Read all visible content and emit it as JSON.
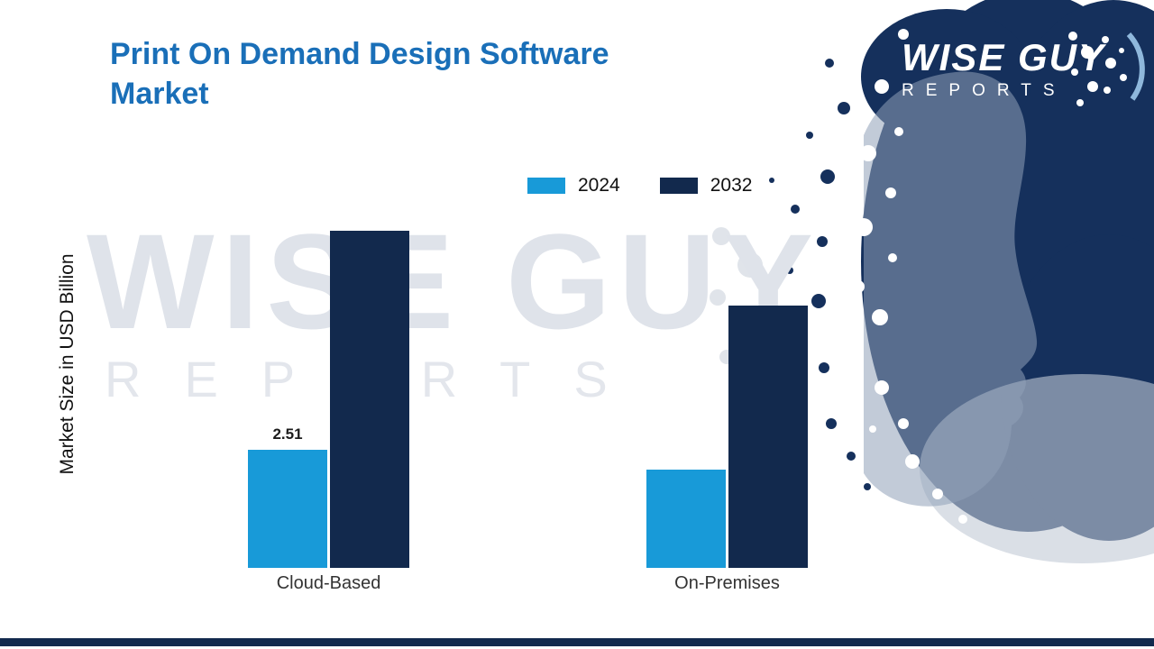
{
  "title": {
    "line1": "Print On Demand Design Software",
    "line2": "Market"
  },
  "logo": {
    "name": "WISE GUY",
    "sub": "REPORTS"
  },
  "watermark": {
    "line1": "WISE GUY",
    "line2": "REPORTS"
  },
  "chart_data": {
    "type": "bar",
    "title": "Print On Demand Design Software Market",
    "categories": [
      "Cloud-Based",
      "On-Premises"
    ],
    "series": [
      {
        "name": "2024",
        "color": "#189ad8",
        "values": [
          2.51,
          2.1
        ],
        "labels": [
          "2.51",
          null
        ]
      },
      {
        "name": "2032",
        "color": "#12294d",
        "values": [
          7.2,
          5.6
        ],
        "labels": [
          null,
          null
        ]
      }
    ],
    "ylabel": "Market Size in USD Billion",
    "unit": "USD Billion",
    "legend_position": "top-center",
    "gridlines": false,
    "y_axis_ticks_visible": false
  },
  "colors": {
    "title": "#1a6fb8",
    "accent_light": "#189ad8",
    "accent_dark": "#12294d",
    "head_navy": "#15305c",
    "watermark": "#dfe3ea",
    "footer_bar": "#12294d"
  }
}
